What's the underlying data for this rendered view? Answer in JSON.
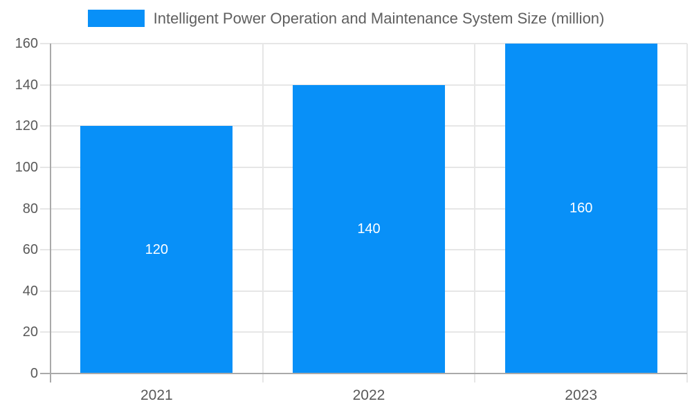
{
  "chart_data": {
    "type": "bar",
    "title": "",
    "categories": [
      "2021",
      "2022",
      "2023"
    ],
    "values": [
      120,
      140,
      160
    ],
    "series_name": "Intelligent Power Operation and Maintenance System Size (million)",
    "xlabel": "",
    "ylabel": "",
    "ylim": [
      0,
      160
    ],
    "yticks": [
      0,
      20,
      40,
      60,
      80,
      100,
      120,
      140,
      160
    ],
    "bar_labels": [
      "120",
      "140",
      "160"
    ],
    "grid": true,
    "legend_position": "top-center",
    "bar_label_position": "inside-center"
  },
  "style": {
    "bar_color": "#0890F8",
    "bar_label_color": "#FFFFFF",
    "axis_color": "#A9A9A9",
    "grid_color": "#E6E6E6",
    "tick_label_color": "#595959",
    "legend_text_color": "#5F5F5F",
    "background_color": "#FFFFFF"
  }
}
